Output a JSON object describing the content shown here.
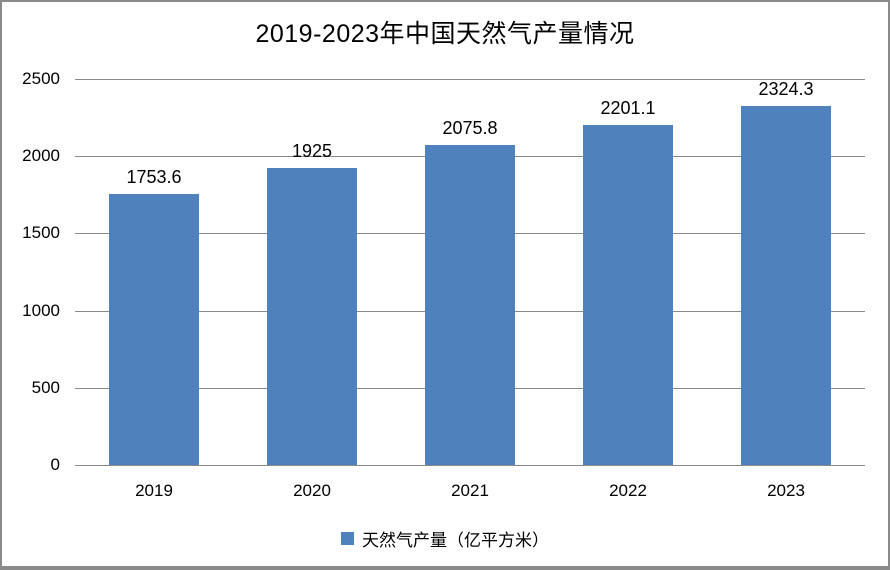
{
  "chart_data": {
    "type": "bar",
    "title": "2019-2023年中国天然气产量情况",
    "categories": [
      "2019",
      "2020",
      "2021",
      "2022",
      "2023"
    ],
    "series": [
      {
        "name": "天然气产量（亿平方米）",
        "values": [
          1753.6,
          1925,
          2075.8,
          2201.1,
          2324.3
        ],
        "data_labels": [
          "1753.6",
          "1925",
          "2075.8",
          "2201.1",
          "2324.3"
        ]
      }
    ],
    "xlabel": "",
    "ylabel": "",
    "ylim": [
      0,
      2500
    ],
    "ytick_interval": 500,
    "yticks": [
      "0",
      "500",
      "1000",
      "1500",
      "2000",
      "2500"
    ],
    "grid": "horizontal-only",
    "legend": {
      "position": "bottom-center",
      "label": "天然气产量（亿平方米）"
    },
    "colors": {
      "bar": "#4F81BD",
      "gridline": "#898989",
      "frame_border": "#8A8A8A",
      "background": "#FFFFFF",
      "text": "#000000"
    }
  }
}
